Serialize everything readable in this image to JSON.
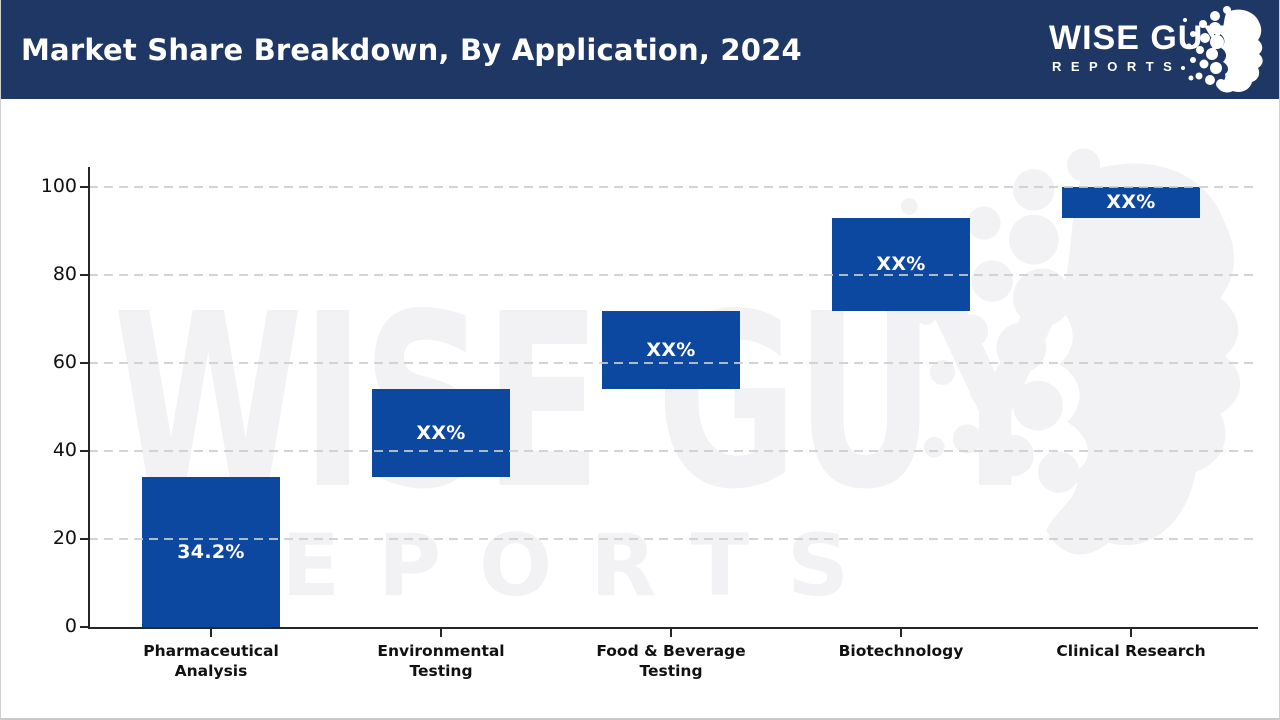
{
  "header": {
    "title": "Market Share Breakdown, By Application, 2024",
    "logo": {
      "line1": "WISE GUY",
      "line2": "REPORTS"
    }
  },
  "watermark": {
    "line1": "WISE GUY",
    "line2": "REPORTS"
  },
  "colors": {
    "header_bg": "#1f3765",
    "bar": "#0c47a0",
    "grid": "#d4d4d4",
    "axis": "#262626",
    "bar_label": "#ffffff",
    "watermark": "#f2f2f4"
  },
  "chart_data": {
    "type": "bar",
    "subtype": "waterfall",
    "title": "Market Share Breakdown, By Application, 2024",
    "xlabel": "",
    "ylabel": "",
    "ylim": [
      0,
      105
    ],
    "yticks": [
      0,
      20,
      40,
      60,
      80,
      100
    ],
    "grid": "horizontal-dashed",
    "legend": null,
    "categories": [
      "Pharmaceutical Analysis",
      "Environmental Testing",
      "Food & Beverage Testing",
      "Biotechnology",
      "Clinical Research"
    ],
    "category_label_lines": [
      [
        "Pharmaceutical",
        "Analysis"
      ],
      [
        "Environmental",
        "Testing"
      ],
      [
        "Food & Beverage",
        "Testing"
      ],
      [
        "Biotechnology"
      ],
      [
        "Clinical Research"
      ]
    ],
    "segments": [
      {
        "category": "Pharmaceutical Analysis",
        "start": 0,
        "end": 34.2,
        "label": "34.2%"
      },
      {
        "category": "Environmental Testing",
        "start": 34.2,
        "end": 54,
        "label": "XX%"
      },
      {
        "category": "Food & Beverage Testing",
        "start": 54,
        "end": 71.8,
        "label": "XX%"
      },
      {
        "category": "Biotechnology",
        "start": 71.8,
        "end": 93,
        "label": "XX%"
      },
      {
        "category": "Clinical Research",
        "start": 93,
        "end": 100,
        "label": "XX%"
      }
    ]
  }
}
